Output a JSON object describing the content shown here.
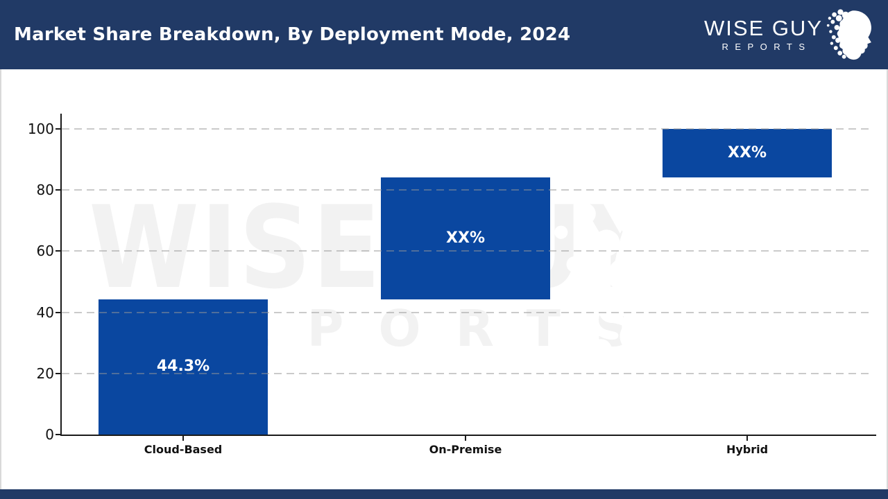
{
  "header": {
    "title": "Market Share Breakdown, By Deployment Mode, 2024",
    "logo": {
      "wordmark": "WISE GUY",
      "sub": "REPORTS"
    }
  },
  "watermark": {
    "line1": "WISE GUY",
    "line2": "REPORTS"
  },
  "footer": {},
  "chart_data": {
    "type": "bar",
    "subtype": "floating-segment-waterfall",
    "title": "Market Share Breakdown, By Deployment Mode, 2024",
    "categories": [
      "Cloud-Based",
      "On-Premise",
      "Hybrid"
    ],
    "bars": [
      {
        "category": "Cloud-Based",
        "label": "44.3%",
        "from": 0,
        "to": 44.3
      },
      {
        "category": "On-Premise",
        "label": "XX%",
        "from": 44.3,
        "to": 84.1
      },
      {
        "category": "Hybrid",
        "label": "XX%",
        "from": 84.1,
        "to": 100
      }
    ],
    "yticks": [
      "0",
      "20",
      "40",
      "60",
      "80",
      "100"
    ],
    "ytick_values": [
      0,
      20,
      40,
      60,
      80,
      100
    ],
    "ylim": [
      0,
      105
    ],
    "xlabel": "",
    "ylabel": "",
    "grid": "horizontal-dashed-over-bars",
    "legend": "none",
    "colors": {
      "bar": "#0a47a0",
      "value_label": "#ffffff",
      "header_bg": "#213a66",
      "footer_bg": "#213a66",
      "watermark": "#f2f2f2",
      "axis": "#1a1a1a",
      "gridline": "#d5d5d5"
    }
  }
}
